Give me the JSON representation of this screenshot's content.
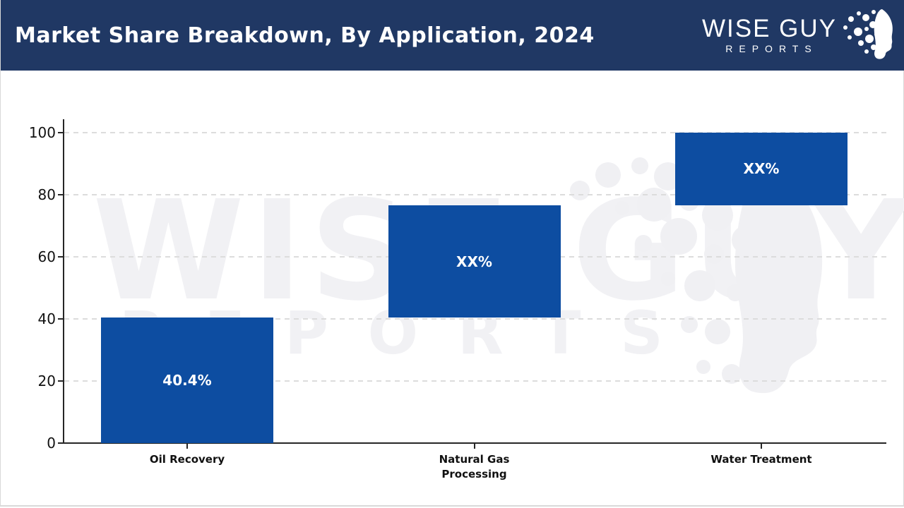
{
  "header": {
    "title": "Market Share Breakdown, By Application, 2024",
    "bg_color": "#203864",
    "logo": {
      "name": "WISE GUY",
      "sub": "REPORTS"
    }
  },
  "watermark": {
    "line1": "WISE GUY",
    "line2": "REPORTS"
  },
  "chart_data": {
    "type": "bar",
    "subtype": "waterfall",
    "title": "Market Share Breakdown, By Application, 2024",
    "unit": "%",
    "categories": [
      {
        "lines": [
          "Oil Recovery"
        ]
      },
      {
        "lines": [
          "Natural Gas",
          "Processing"
        ]
      },
      {
        "lines": [
          "Water Treatment"
        ]
      }
    ],
    "segments": [
      {
        "category": "Oil Recovery",
        "start": 0,
        "end": 40.4,
        "label": "40.4%"
      },
      {
        "category": "Natural Gas Processing",
        "start": 40.4,
        "end": 76.4,
        "label": "XX%"
      },
      {
        "category": "Water Treatment",
        "start": 76.4,
        "end": 100,
        "label": "XX%"
      }
    ],
    "yticks": [
      0,
      20,
      40,
      60,
      80,
      100
    ],
    "ylim": [
      0,
      104
    ],
    "bar_color": "#0d4da1",
    "bar_label_color": "#ffffff",
    "grid": {
      "style": "dashed",
      "color": "#dcdcdc",
      "orientation": "horizontal"
    },
    "axis_color": "#262626",
    "legend": "none"
  }
}
